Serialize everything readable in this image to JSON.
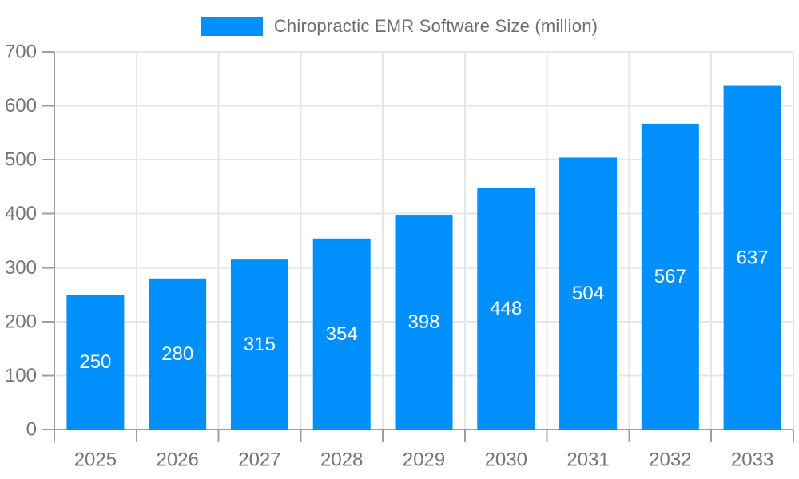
{
  "legend": {
    "label": "Chiropractic EMR Software Size (million)"
  },
  "chart_data": {
    "type": "bar",
    "title": "Chiropractic EMR Software Size (million)",
    "categories": [
      "2025",
      "2026",
      "2027",
      "2028",
      "2029",
      "2030",
      "2031",
      "2032",
      "2033"
    ],
    "values": [
      250,
      280,
      315,
      354,
      398,
      448,
      504,
      567,
      637
    ],
    "xlabel": "",
    "ylabel": "",
    "ylim": [
      0,
      700
    ],
    "yticks": [
      0,
      100,
      200,
      300,
      400,
      500,
      600,
      700
    ],
    "grid": true,
    "legend_position": "top",
    "colors": {
      "bar": "#008ffb",
      "value_label": "#ffffff",
      "axis_label": "#757575",
      "title": "#6e6e6e",
      "gridline": "#e6e6e6",
      "axis_line": "#9e9e9e"
    }
  }
}
